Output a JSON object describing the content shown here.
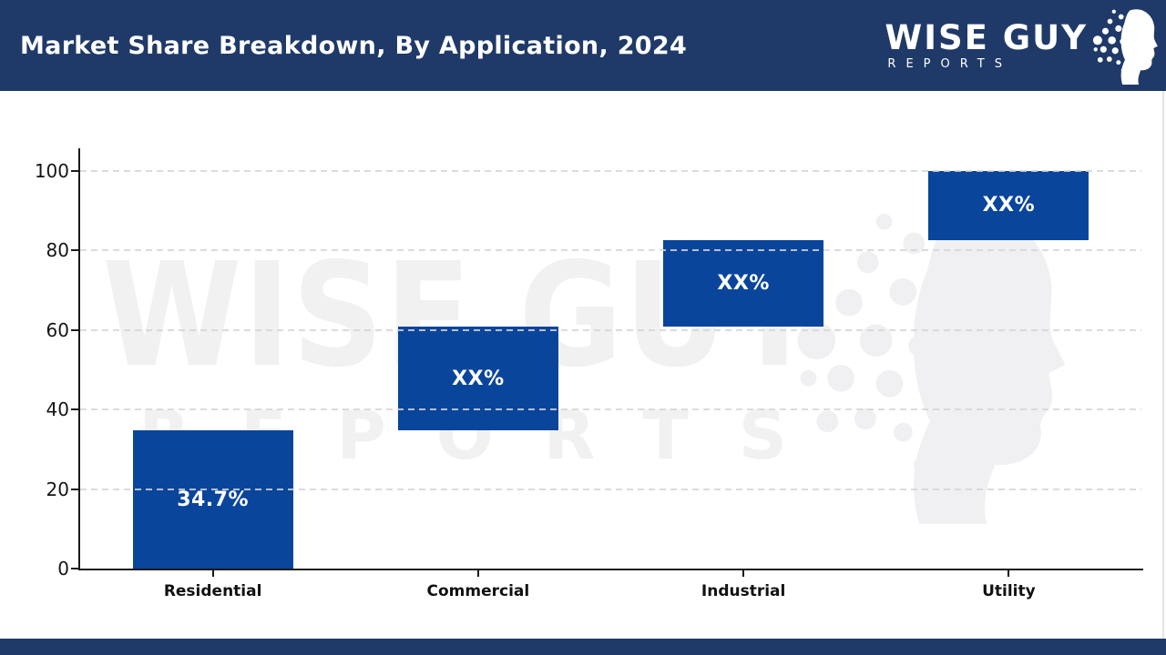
{
  "header": {
    "title": "Market Share Breakdown, By Application, 2024",
    "logo": {
      "wordmark": "WISE GUY",
      "subtext": "REPORTS"
    }
  },
  "watermark": {
    "line1": "WISE GUY",
    "line2": "REPORTS"
  },
  "chart_data": {
    "type": "bar",
    "subtype": "waterfall",
    "title": "Market Share Breakdown, By Application, 2024",
    "categories": [
      "Residential",
      "Commercial",
      "Industrial",
      "Utility"
    ],
    "segments": [
      [
        0,
        34.7
      ],
      [
        34.7,
        60.8
      ],
      [
        60.8,
        82.6
      ],
      [
        82.6,
        100
      ]
    ],
    "bar_labels": [
      "34.7%",
      "XX%",
      "XX%",
      "XX%"
    ],
    "values_estimated": [
      34.7,
      26.1,
      21.8,
      17.4
    ],
    "ylim": [
      0,
      100
    ],
    "yticks": [
      0,
      20,
      40,
      60,
      80,
      100
    ],
    "xlabel": "",
    "ylabel": "",
    "grid": "horizontal-dashed",
    "legend": "none"
  },
  "colors": {
    "header_bg": "#1f3a68",
    "footer_bg": "#1f3a68",
    "bar": "#0a459c",
    "grid": "#d5d5d5",
    "axis": "#1a1a1a",
    "bar_label": "#ffffff",
    "watermark": "#f1f1f2"
  }
}
